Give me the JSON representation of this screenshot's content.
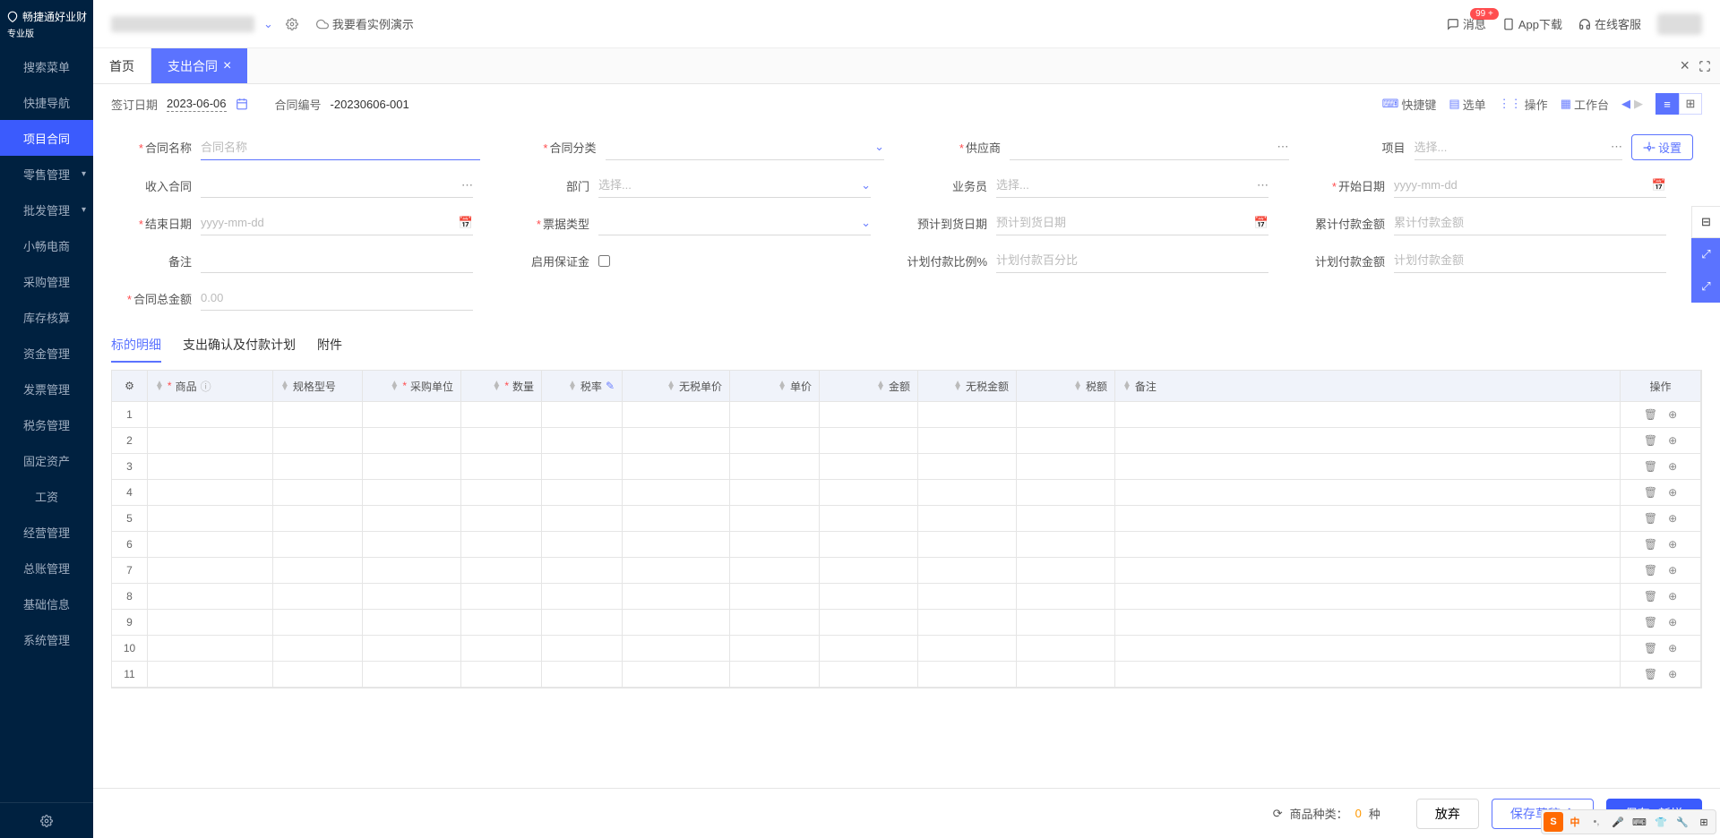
{
  "brand": {
    "name": "畅捷通好业财",
    "edition": "专业版"
  },
  "sidebar": {
    "items": [
      {
        "label": "搜索菜单",
        "active": false,
        "expand": false
      },
      {
        "label": "快捷导航",
        "active": false,
        "expand": false
      },
      {
        "label": "项目合同",
        "active": true,
        "expand": false
      },
      {
        "label": "零售管理",
        "active": false,
        "expand": true
      },
      {
        "label": "批发管理",
        "active": false,
        "expand": true
      },
      {
        "label": "小畅电商",
        "active": false,
        "expand": false
      },
      {
        "label": "采购管理",
        "active": false,
        "expand": false
      },
      {
        "label": "库存核算",
        "active": false,
        "expand": false
      },
      {
        "label": "资金管理",
        "active": false,
        "expand": false
      },
      {
        "label": "发票管理",
        "active": false,
        "expand": false
      },
      {
        "label": "税务管理",
        "active": false,
        "expand": false
      },
      {
        "label": "固定资产",
        "active": false,
        "expand": false
      },
      {
        "label": "工资",
        "active": false,
        "expand": false
      },
      {
        "label": "经营管理",
        "active": false,
        "expand": false
      },
      {
        "label": "总账管理",
        "active": false,
        "expand": false
      },
      {
        "label": "基础信息",
        "active": false,
        "expand": false
      },
      {
        "label": "系统管理",
        "active": false,
        "expand": false
      }
    ]
  },
  "topbar": {
    "demo": "我要看实例演示",
    "msg": "消息",
    "badge": "99 +",
    "app": "App下载",
    "service": "在线客服"
  },
  "tabs": {
    "home": "首页",
    "active": "支出合同"
  },
  "actionbar": {
    "sign_date_label": "签订日期",
    "sign_date": "2023-06-06",
    "contract_no_label": "合同编号",
    "contract_no": "-20230606-001",
    "shortcut": "快捷键",
    "select": "选单",
    "operate": "操作",
    "workbench": "工作台"
  },
  "form": {
    "contract_name": {
      "label": "合同名称",
      "placeholder": "合同名称",
      "required": true
    },
    "contract_cat": {
      "label": "合同分类",
      "placeholder": "",
      "required": true
    },
    "supplier": {
      "label": "供应商",
      "placeholder": "",
      "required": true
    },
    "project": {
      "label": "项目",
      "placeholder": "选择...",
      "required": false
    },
    "income_contract": {
      "label": "收入合同",
      "placeholder": "",
      "required": false
    },
    "dept": {
      "label": "部门",
      "placeholder": "选择...",
      "required": false
    },
    "salesperson": {
      "label": "业务员",
      "placeholder": "选择...",
      "required": false
    },
    "start_date": {
      "label": "开始日期",
      "placeholder": "yyyy-mm-dd",
      "required": true
    },
    "end_date": {
      "label": "结束日期",
      "placeholder": "yyyy-mm-dd",
      "required": true
    },
    "invoice_type": {
      "label": "票据类型",
      "placeholder": "",
      "required": true
    },
    "expect_arrival": {
      "label": "预计到货日期",
      "placeholder": "预计到货日期",
      "required": false
    },
    "paid_total": {
      "label": "累计付款金额",
      "placeholder": "累计付款金额",
      "required": false
    },
    "remark": {
      "label": "备注",
      "placeholder": "",
      "required": false
    },
    "enable_deposit": {
      "label": "启用保证金"
    },
    "plan_pay_pct": {
      "label": "计划付款比例%",
      "placeholder": "计划付款百分比",
      "required": false
    },
    "plan_pay_amt": {
      "label": "计划付款金额",
      "placeholder": "计划付款金额",
      "required": false
    },
    "contract_total": {
      "label": "合同总金额",
      "placeholder": "0.00",
      "required": true
    },
    "setting_btn": "设置"
  },
  "subtabs": {
    "t1": "标的明细",
    "t2": "支出确认及付款计划",
    "t3": "附件"
  },
  "table": {
    "cols": {
      "product": "商品",
      "spec": "规格型号",
      "unit": "采购单位",
      "qty": "数量",
      "taxrate": "税率",
      "nt_price": "无税单价",
      "price": "单价",
      "amount": "金额",
      "nt_amount": "无税金额",
      "tax_amount": "税额",
      "remark": "备注",
      "ops": "操作"
    },
    "row_count": 11
  },
  "footer": {
    "kinds_label": "商品种类：",
    "kinds_count": "0",
    "kinds_unit": "种",
    "discard": "放弃",
    "save_draft": "保存草稿",
    "save_add": "保存&新增"
  }
}
